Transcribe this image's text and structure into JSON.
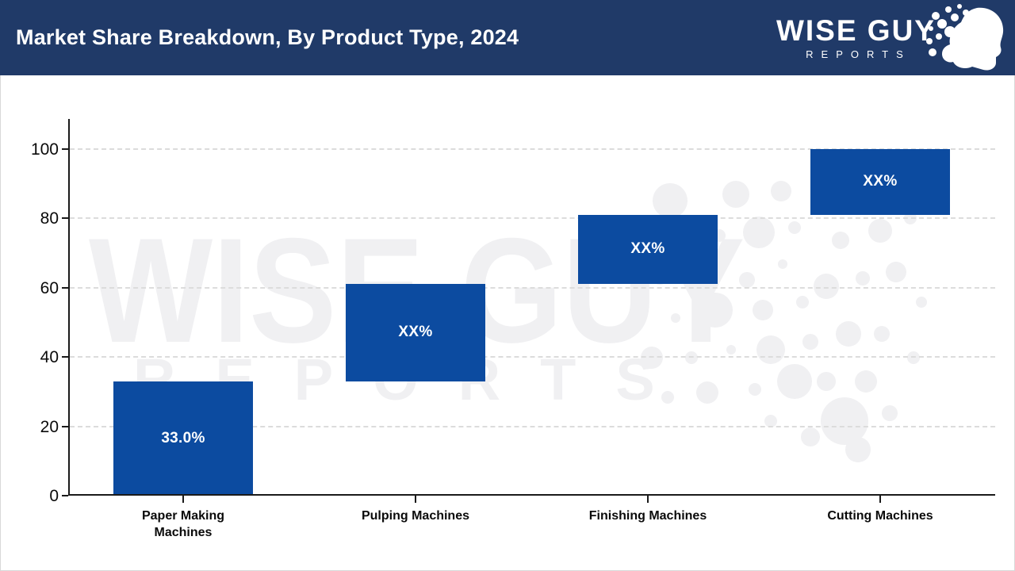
{
  "header": {
    "title": "Market Share Breakdown, By Product Type, 2024",
    "bg_color": "#203a68",
    "logo": {
      "line1": "WISE GUY",
      "line2": "REPORTS"
    }
  },
  "watermark": {
    "line1": "WISE GUY",
    "line2": "REPORTS"
  },
  "chart_data": {
    "type": "bar",
    "subtype": "waterfall",
    "title": "Market Share Breakdown, By Product Type, 2024",
    "categories": [
      "Paper Making\nMachines",
      "Pulping Machines",
      "Finishing Machines",
      "Cutting Machines"
    ],
    "segments": [
      {
        "category": "Paper Making Machines",
        "start": 0,
        "end": 33,
        "label": "33.0%"
      },
      {
        "category": "Pulping Machines",
        "start": 33,
        "end": 61,
        "label": "XX%"
      },
      {
        "category": "Finishing Machines",
        "start": 61,
        "end": 81,
        "label": "XX%"
      },
      {
        "category": "Cutting Machines",
        "start": 81,
        "end": 100,
        "label": "XX%"
      }
    ],
    "yticks": [
      0,
      20,
      40,
      60,
      80,
      100
    ],
    "ylim": [
      0,
      108
    ],
    "grid": true,
    "legend": false,
    "bar_color": "#0c4ba0",
    "bar_label_color": "#ffffff",
    "xlabel": "",
    "ylabel": ""
  }
}
